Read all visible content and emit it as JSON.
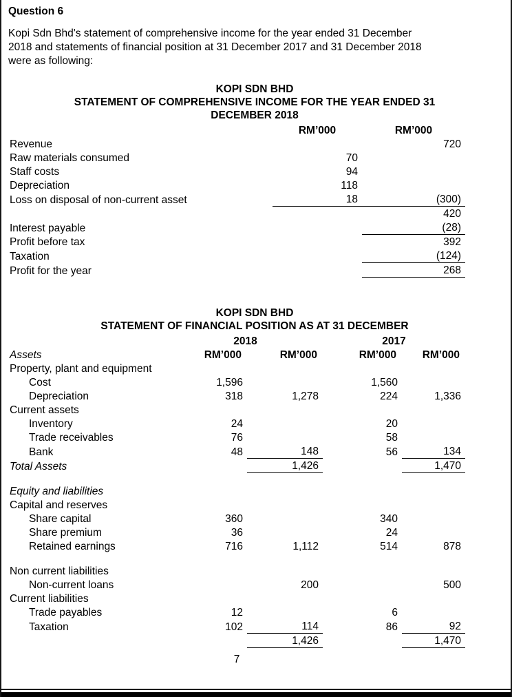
{
  "page": {
    "question_title": "Question 6",
    "intro": "Kopi Sdn Bhd's statement of comprehensive income for the year ended 31 December\n2018 and statements of financial position at 31 December 2017 and 31 December 2018\nwere as following:",
    "page_number": "7"
  },
  "income_statement": {
    "company": "KOPI SDN BHD",
    "title": "STATEMENT OF COMPREHENSIVE INCOME FOR THE YEAR ENDED 31\nDECEMBER 2018",
    "col_headers": [
      "RM’000",
      "RM’000"
    ],
    "rows": [
      {
        "label": "Revenue",
        "cells": [
          "",
          "720"
        ]
      },
      {
        "label": "Raw materials consumed",
        "cells": [
          "70",
          ""
        ]
      },
      {
        "label": "Staff costs",
        "cells": [
          "94",
          ""
        ]
      },
      {
        "label": "Depreciation",
        "cells": [
          "118",
          ""
        ]
      },
      {
        "label": "Loss on disposal of non-current asset",
        "cells": [
          "18",
          "(300)"
        ],
        "underline": [
          true,
          true
        ]
      },
      {
        "label": "",
        "cells": [
          "",
          "420"
        ]
      },
      {
        "label": "Interest payable",
        "cells": [
          "",
          "(28)"
        ],
        "underline": [
          false,
          true
        ]
      },
      {
        "label": "Profit before tax",
        "cells": [
          "",
          "392"
        ]
      },
      {
        "label": "Taxation",
        "cells": [
          "",
          "(124)"
        ],
        "underline": [
          false,
          true
        ]
      },
      {
        "label": "Profit for the year",
        "cells": [
          "",
          "268"
        ],
        "underline": [
          false,
          true
        ]
      }
    ]
  },
  "financial_position": {
    "company": "KOPI SDN BHD",
    "title": "STATEMENT OF FINANCIAL POSITION AS AT 31 DECEMBER",
    "year_headers": [
      "2018",
      "2017"
    ],
    "section_label": "Assets",
    "col_headers": [
      "RM’000",
      "RM’000",
      "RM’000",
      "RM’000"
    ],
    "rows": [
      {
        "label": "Property, plant and equipment",
        "cells": [
          "",
          "",
          "",
          ""
        ]
      },
      {
        "label": "Cost",
        "indent": true,
        "cells": [
          "1,596",
          "",
          "1,560",
          ""
        ]
      },
      {
        "label": "Depreciation",
        "indent": true,
        "cells": [
          "318",
          "1,278",
          "224",
          "1,336"
        ]
      },
      {
        "label": "Current assets",
        "cells": [
          "",
          "",
          "",
          ""
        ]
      },
      {
        "label": "Inventory",
        "indent": true,
        "cells": [
          "24",
          "",
          "20",
          ""
        ]
      },
      {
        "label": "Trade receivables",
        "indent": true,
        "cells": [
          "76",
          "",
          "58",
          ""
        ]
      },
      {
        "label": "Bank",
        "indent": true,
        "cells": [
          "48",
          "148",
          "56",
          "134"
        ],
        "underline": [
          false,
          true,
          false,
          true
        ]
      },
      {
        "label": "Total Assets",
        "italic": true,
        "cells": [
          "",
          "1,426",
          "",
          "1,470"
        ],
        "underline": [
          false,
          true,
          false,
          true
        ]
      },
      {
        "spacer": true
      },
      {
        "label": "Equity and liabilities",
        "italic": true,
        "cells": [
          "",
          "",
          "",
          ""
        ]
      },
      {
        "label": "Capital and reserves",
        "cells": [
          "",
          "",
          "",
          ""
        ]
      },
      {
        "label": "Share capital",
        "indent": true,
        "cells": [
          "360",
          "",
          "340",
          ""
        ]
      },
      {
        "label": "Share premium",
        "indent": true,
        "cells": [
          "36",
          "",
          "24",
          ""
        ]
      },
      {
        "label": "Retained earnings",
        "indent": true,
        "cells": [
          "716",
          "1,112",
          "514",
          "878"
        ]
      },
      {
        "spacer": true
      },
      {
        "label": "Non current liabilities",
        "cells": [
          "",
          "",
          "",
          ""
        ]
      },
      {
        "label": "Non-current loans",
        "indent": true,
        "cells": [
          "",
          "200",
          "",
          "500"
        ]
      },
      {
        "label": "Current liabilities",
        "cells": [
          "",
          "",
          "",
          ""
        ]
      },
      {
        "label": "Trade payables",
        "indent": true,
        "cells": [
          "12",
          "",
          "6",
          ""
        ]
      },
      {
        "label": "Taxation",
        "indent": true,
        "cells": [
          "102",
          "114",
          "86",
          "92"
        ],
        "underline": [
          false,
          true,
          false,
          true
        ]
      },
      {
        "label": "",
        "cells": [
          "",
          "1,426",
          "",
          "1,470"
        ],
        "underline": [
          false,
          true,
          false,
          true
        ]
      }
    ]
  }
}
